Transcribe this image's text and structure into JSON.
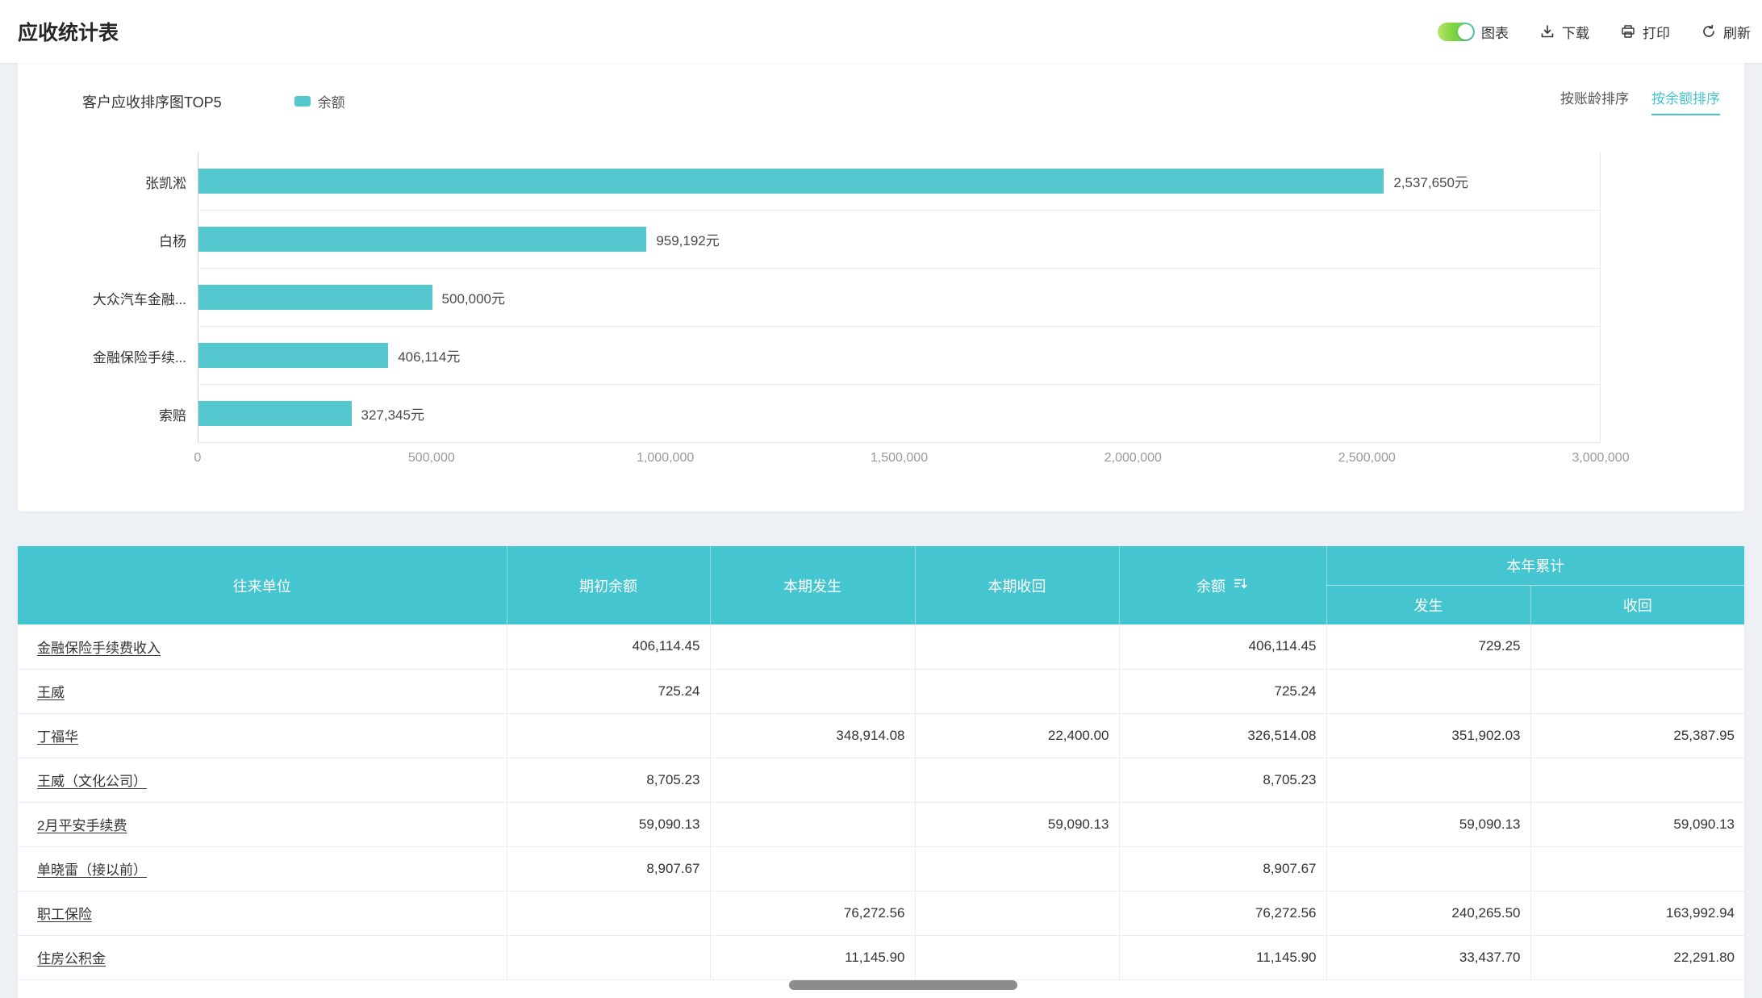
{
  "colors": {
    "accent": "#45c4ce",
    "bar": "#55c8cf",
    "header_bg": "#44c5cf"
  },
  "page": {
    "title": "应收统计表",
    "toolbar": {
      "chart_toggle_label": "图表",
      "download_label": "下载",
      "print_label": "打印",
      "refresh_label": "刷新"
    }
  },
  "chart_card": {
    "title": "客户应收排序图TOP5",
    "legend_label": "余额",
    "sort_tab_aging": "按账龄排序",
    "sort_tab_balance": "按余额排序"
  },
  "chart_data": {
    "type": "bar",
    "orientation": "horizontal",
    "title": "客户应收排序图TOP5",
    "series_name": "余额",
    "categories": [
      "张凯淞",
      "白杨",
      "大众汽车金融...",
      "金融保险手续...",
      "索赔"
    ],
    "values": [
      2537650,
      959192,
      500000,
      406114,
      327345
    ],
    "value_labels": [
      "2,537,650元",
      "959,192元",
      "500,000元",
      "406,114元",
      "327,345元"
    ],
    "xlim": [
      0,
      3000000
    ],
    "x_ticks": [
      "0",
      "500,000",
      "1,000,000",
      "1,500,000",
      "2,000,000",
      "2,500,000",
      "3,000,000"
    ],
    "grid": "row separators horizontal",
    "legend_position": "top-left",
    "bar_color": "#55c8cf"
  },
  "table": {
    "headers": {
      "company": "往来单位",
      "opening_balance": "期初余额",
      "current_occurred": "本期发生",
      "current_received": "本期收回",
      "balance": "余额",
      "year_total": "本年累计",
      "year_occurred": "发生",
      "year_received": "收回"
    },
    "rows": [
      [
        "金融保险手续费收入",
        "406,114.45",
        "",
        "",
        "406,114.45",
        "729.25",
        ""
      ],
      [
        "王威",
        "725.24",
        "",
        "",
        "725.24",
        "",
        ""
      ],
      [
        "丁福华",
        "",
        "348,914.08",
        "22,400.00",
        "326,514.08",
        "351,902.03",
        "25,387.95"
      ],
      [
        "王威（文化公司）",
        "8,705.23",
        "",
        "",
        "8,705.23",
        "",
        ""
      ],
      [
        "2月平安手续费",
        "59,090.13",
        "",
        "59,090.13",
        "",
        "59,090.13",
        "59,090.13"
      ],
      [
        "单晓雷（接以前）",
        "8,907.67",
        "",
        "",
        "8,907.67",
        "",
        ""
      ],
      [
        "职工保险",
        "",
        "76,272.56",
        "",
        "76,272.56",
        "240,265.50",
        "163,992.94"
      ],
      [
        "住房公积金",
        "",
        "11,145.90",
        "",
        "11,145.90",
        "33,437.70",
        "22,291.80"
      ]
    ]
  }
}
